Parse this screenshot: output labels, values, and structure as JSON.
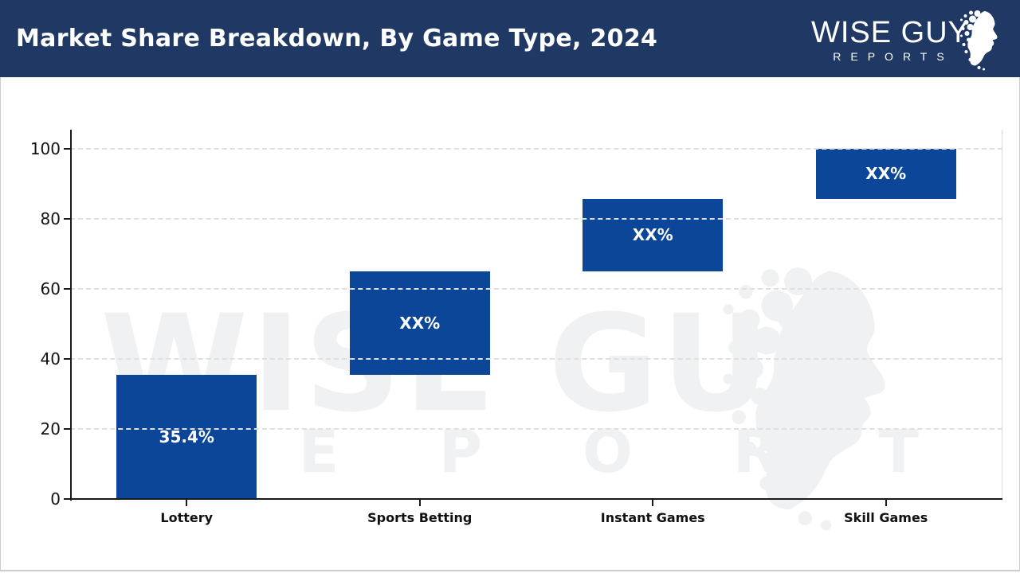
{
  "header": {
    "title": "Market Share Breakdown, By Game Type, 2024",
    "logo": {
      "line1": "WISE GUY",
      "line2": "REPORTS"
    }
  },
  "watermark": {
    "line1": "WISE GUY",
    "line2": "R E P O R T S"
  },
  "colors": {
    "header_bg": "#1f3864",
    "bar": "#0c4699",
    "bar_label": "#ffffff",
    "grid": "#e0e0e0",
    "axis": "#1a1a1a",
    "text": "#111111",
    "watermark": "#f0f1f3",
    "frame_border": "#cccccc",
    "plot_right_spine": "#d9d9d9"
  },
  "chart_data": {
    "type": "bar",
    "subtype": "waterfall-floating-bars",
    "title": "Market Share Breakdown, By Game Type, 2024",
    "categories": [
      "Lottery",
      "Sports Betting",
      "Instant Games",
      "Skill Games"
    ],
    "segments": [
      {
        "category": "Lottery",
        "start": 0,
        "end": 35.4,
        "label": "35.4%"
      },
      {
        "category": "Sports Betting",
        "start": 35.4,
        "end": 65.0,
        "label": "XX%"
      },
      {
        "category": "Instant Games",
        "start": 65.0,
        "end": 85.7,
        "label": "XX%"
      },
      {
        "category": "Skill Games",
        "start": 85.7,
        "end": 100,
        "label": "XX%"
      }
    ],
    "yticks": [
      0,
      20,
      40,
      60,
      80,
      100
    ],
    "ylim": [
      0,
      105
    ],
    "xlabel": "",
    "ylabel": "",
    "grid": "horizontal-dashed-above-bars",
    "legend": "none"
  }
}
